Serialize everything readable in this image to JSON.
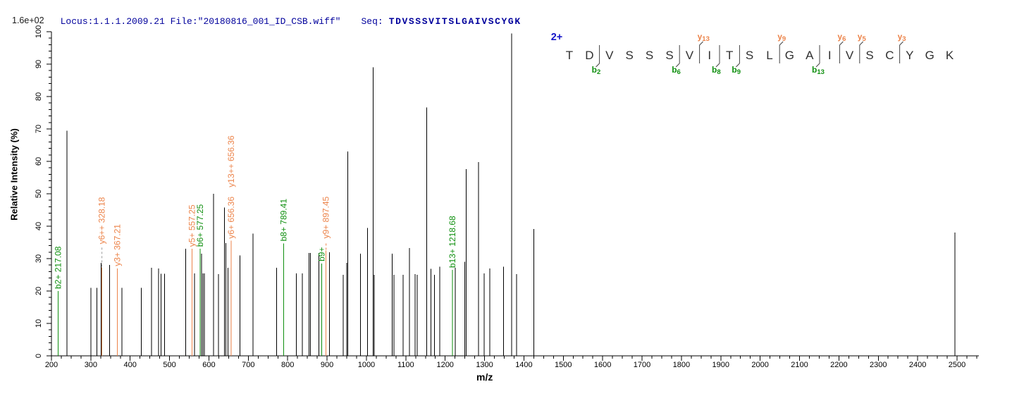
{
  "header": {
    "locus_file": "Locus:1.1.1.2009.21 File:\"20180816_001_ID_CSB.wiff\"",
    "seq_label": "Seq:",
    "sequence": "TDVSSSVITSLGAIVSCYGK"
  },
  "peptide": {
    "charge_label": "2+",
    "residues": [
      "T",
      "D",
      "V",
      "S",
      "S",
      "S",
      "V",
      "I",
      "T",
      "S",
      "L",
      "G",
      "A",
      "I",
      "V",
      "S",
      "C",
      "Y",
      "G",
      "K"
    ],
    "b_ion_markers": [
      {
        "after_residue": 2,
        "label": "b2"
      },
      {
        "after_residue": 6,
        "label": "b6"
      },
      {
        "after_residue": 8,
        "label": "b8"
      },
      {
        "after_residue": 9,
        "label": "b9"
      },
      {
        "after_residue": 13,
        "label": "b13"
      }
    ],
    "y_ion_markers": [
      {
        "before_residue": 8,
        "label": "y13"
      },
      {
        "before_residue": 12,
        "label": "y9"
      },
      {
        "before_residue": 15,
        "label": "y6"
      },
      {
        "before_residue": 16,
        "label": "y5"
      },
      {
        "before_residue": 18,
        "label": "y3"
      }
    ]
  },
  "colors": {
    "header_text": "#00009c",
    "charge_label": "#1414c8",
    "b_ion": "#0f8f0f",
    "y_ion": "#ec8349",
    "peak": "#000000",
    "axis": "#000000",
    "residue_text": "#303030",
    "leader_dash": "#9a9a9a"
  },
  "chart_data": {
    "type": "bar",
    "xlabel": "m/z",
    "ylabel": "Relative  Intensity (%)",
    "max_intensity_label": "1.6e+02",
    "xlim": [
      200,
      2500
    ],
    "ylim": [
      0,
      100
    ],
    "x_tick_step": 100,
    "x_minor_tick_step": 25,
    "y_tick_step": 10,
    "y_minor_tick_step": 2,
    "grid": false,
    "peaks": [
      {
        "mz": 217.08,
        "intensity": 20,
        "ion": "b",
        "label": "b2+ 217.08"
      },
      {
        "mz": 239,
        "intensity": 69.5
      },
      {
        "mz": 300,
        "intensity": 21
      },
      {
        "mz": 315,
        "intensity": 21
      },
      {
        "mz": 326,
        "intensity": 28.7
      },
      {
        "mz": 328.18,
        "intensity": 27.3,
        "ion": "y",
        "label": "y6++ 328.18",
        "label_offset": 30
      },
      {
        "mz": 348,
        "intensity": 28
      },
      {
        "mz": 367.21,
        "intensity": 27,
        "ion": "y",
        "label": "y3+ 367.21"
      },
      {
        "mz": 379,
        "intensity": 21
      },
      {
        "mz": 428,
        "intensity": 21
      },
      {
        "mz": 454,
        "intensity": 27.2
      },
      {
        "mz": 472,
        "intensity": 27
      },
      {
        "mz": 478,
        "intensity": 25.3
      },
      {
        "mz": 487,
        "intensity": 25.3
      },
      {
        "mz": 541,
        "intensity": 33
      },
      {
        "mz": 557.25,
        "intensity": 33,
        "ion": "y",
        "label": "y5+ 557.25"
      },
      {
        "mz": 563,
        "intensity": 25.4
      },
      {
        "mz": 577.25,
        "intensity": 33,
        "ion": "b",
        "label": "b6+ 577.25"
      },
      {
        "mz": 581,
        "intensity": 31.5
      },
      {
        "mz": 585,
        "intensity": 25.4
      },
      {
        "mz": 588,
        "intensity": 25.4
      },
      {
        "mz": 612,
        "intensity": 50
      },
      {
        "mz": 624,
        "intensity": 25.2
      },
      {
        "mz": 639,
        "intensity": 45.8
      },
      {
        "mz": 643,
        "intensity": 34.8
      },
      {
        "mz": 648,
        "intensity": 27.2
      },
      {
        "mz": 656.36,
        "intensity": 35.5,
        "ion": "y",
        "label": "y6+ 656.36",
        "label2": "y13++ 656.36"
      },
      {
        "mz": 679,
        "intensity": 31
      },
      {
        "mz": 712,
        "intensity": 37.7
      },
      {
        "mz": 772,
        "intensity": 27.2
      },
      {
        "mz": 789.41,
        "intensity": 34.7,
        "ion": "b",
        "label": "b8+ 789.41"
      },
      {
        "mz": 822,
        "intensity": 25.4
      },
      {
        "mz": 837,
        "intensity": 25.4
      },
      {
        "mz": 854,
        "intensity": 31.7
      },
      {
        "mz": 858,
        "intensity": 31.7
      },
      {
        "mz": 879,
        "intensity": 31.7
      },
      {
        "mz": 886,
        "intensity": 28.5,
        "ion": "b",
        "label": "b9+"
      },
      {
        "mz": 897.45,
        "intensity": 32.5,
        "ion": "y",
        "label": "y9+ 897.45",
        "label_offset": 14
      },
      {
        "mz": 906,
        "intensity": 32
      },
      {
        "mz": 941,
        "intensity": 25
      },
      {
        "mz": 950,
        "intensity": 28.7
      },
      {
        "mz": 953,
        "intensity": 63
      },
      {
        "mz": 985,
        "intensity": 31.5
      },
      {
        "mz": 1003,
        "intensity": 39.5
      },
      {
        "mz": 1017,
        "intensity": 89
      },
      {
        "mz": 1020,
        "intensity": 25
      },
      {
        "mz": 1065,
        "intensity": 31.5
      },
      {
        "mz": 1070,
        "intensity": 25
      },
      {
        "mz": 1093,
        "intensity": 25
      },
      {
        "mz": 1109,
        "intensity": 33.3
      },
      {
        "mz": 1124,
        "intensity": 25.2
      },
      {
        "mz": 1129,
        "intensity": 25
      },
      {
        "mz": 1153,
        "intensity": 76.6
      },
      {
        "mz": 1164,
        "intensity": 26.8
      },
      {
        "mz": 1173,
        "intensity": 25
      },
      {
        "mz": 1186,
        "intensity": 27.5
      },
      {
        "mz": 1218.68,
        "intensity": 26.5,
        "ion": "b",
        "label": "b13+ 1218.68"
      },
      {
        "mz": 1226,
        "intensity": 27.2
      },
      {
        "mz": 1250,
        "intensity": 29
      },
      {
        "mz": 1253,
        "intensity": 57.6
      },
      {
        "mz": 1285,
        "intensity": 59.8
      },
      {
        "mz": 1299,
        "intensity": 25.4
      },
      {
        "mz": 1313,
        "intensity": 27
      },
      {
        "mz": 1348,
        "intensity": 27.5
      },
      {
        "mz": 1369,
        "intensity": 99.5
      },
      {
        "mz": 1381,
        "intensity": 25.2
      },
      {
        "mz": 1425,
        "intensity": 39.1
      },
      {
        "mz": 2495,
        "intensity": 38
      }
    ]
  }
}
